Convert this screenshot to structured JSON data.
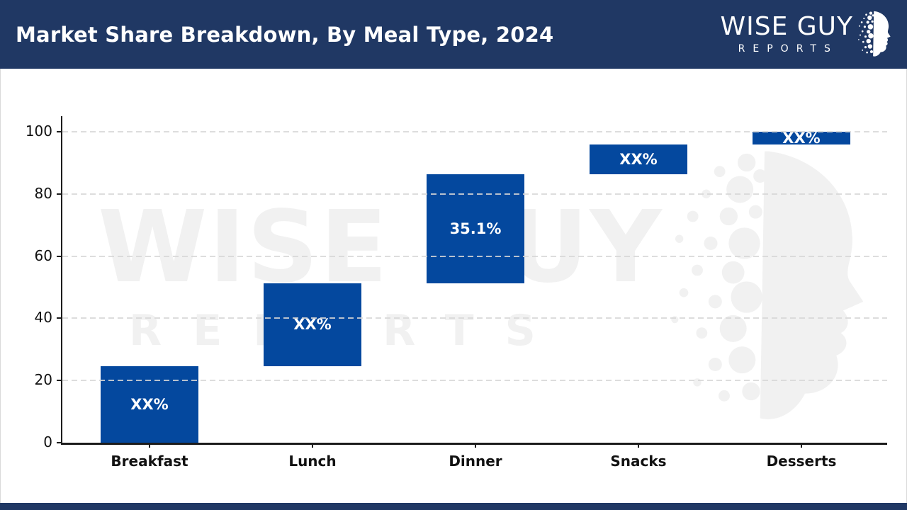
{
  "header": {
    "title": "Market Share Breakdown, By Meal Type, 2024"
  },
  "logo": {
    "wordmark": "WISE GUY",
    "subtext": "REPORTS"
  },
  "watermark": {
    "wordmark": "WISE GUY",
    "subtext": "REPORTS"
  },
  "colors": {
    "header_bg": "#203864",
    "footer_bg": "#203864",
    "bar_fill": "#04489e",
    "bar_label": "#ffffff",
    "axis": "#1c1c1c",
    "tick_label": "#111111",
    "gridline": "#d9d9d9",
    "watermark": "#f1f1f1",
    "background": "#ffffff"
  },
  "chart_data": {
    "type": "bar",
    "subtype": "waterfall",
    "title": "Market Share Breakdown, By Meal Type, 2024",
    "xlabel": "",
    "ylabel": "",
    "categories": [
      "Breakfast",
      "Lunch",
      "Dinner",
      "Snacks",
      "Desserts"
    ],
    "segments": [
      {
        "category": "Breakfast",
        "start": 0,
        "end": 24.7,
        "label": "XX%"
      },
      {
        "category": "Lunch",
        "start": 24.7,
        "end": 51.2,
        "label": "XX%"
      },
      {
        "category": "Dinner",
        "start": 51.2,
        "end": 86.3,
        "label": "35.1%"
      },
      {
        "category": "Snacks",
        "start": 86.3,
        "end": 95.8,
        "label": "XX%"
      },
      {
        "category": "Desserts",
        "start": 95.8,
        "end": 100,
        "label": "XX%"
      }
    ],
    "yticks": [
      0,
      20,
      40,
      60,
      80,
      100
    ],
    "ylim": [
      0,
      105
    ],
    "grid": true,
    "grid_style": "dashed",
    "legend": false
  }
}
